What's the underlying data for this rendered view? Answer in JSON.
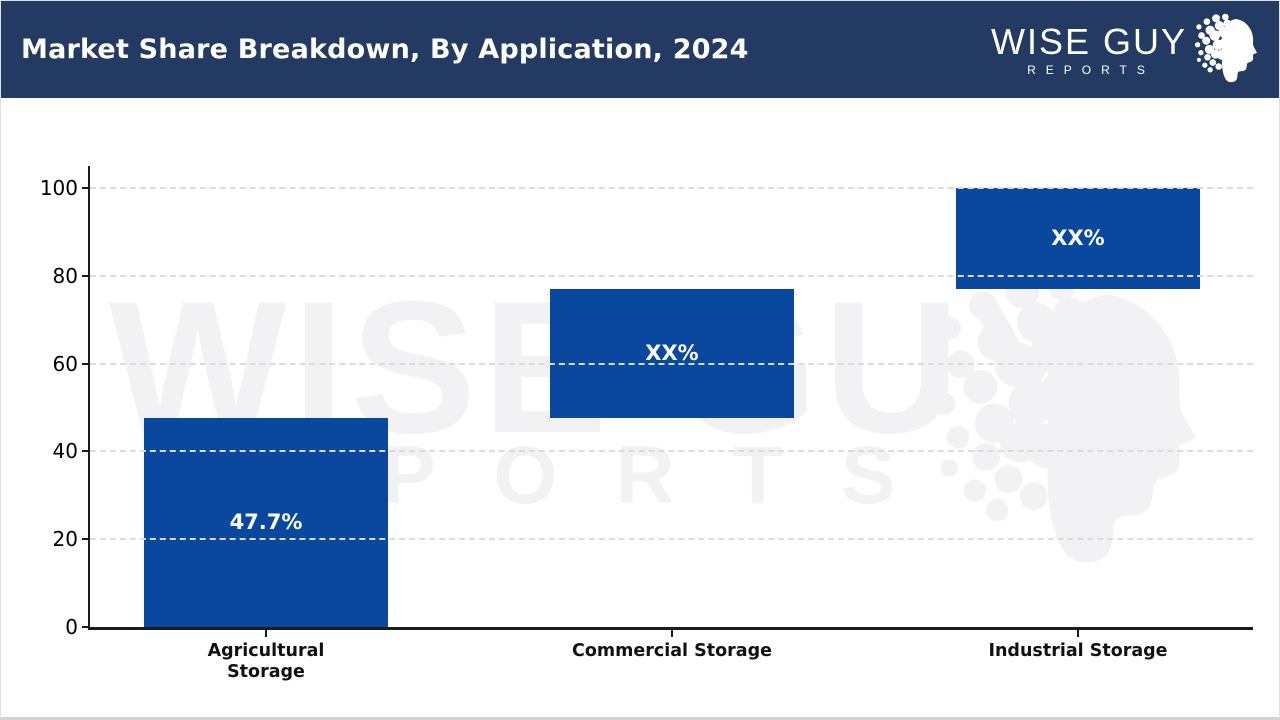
{
  "header": {
    "title": "Market Share Breakdown, By Application, 2024",
    "logo": {
      "name": "WISE GUY",
      "sub": "REPORTS"
    }
  },
  "watermark": {
    "word": "WISE GUY",
    "sub": "REPORTS"
  },
  "colors": {
    "header_bg": "#233A63",
    "bar_blue": "#0A479F",
    "grid": "#dcdcdc",
    "spine": "#1c1c1c",
    "watermark": "#f2f2f4",
    "label_on_bar": "#ffffff"
  },
  "chart_data": {
    "type": "bar",
    "subtype": "floating-segment (waterfall style market-share breakdown)",
    "title": "Market Share Breakdown, By Application, 2024",
    "categories": [
      [
        "Agricultural",
        "Storage"
      ],
      [
        "Commercial Storage"
      ],
      [
        "Industrial Storage"
      ]
    ],
    "segments": [
      {
        "category": "Agricultural Storage",
        "start": 0,
        "end": 47.7,
        "label": "47.7%"
      },
      {
        "category": "Commercial Storage",
        "start": 47.7,
        "end": 77.0,
        "label": "XX%"
      },
      {
        "category": "Industrial Storage",
        "start": 77.0,
        "end": 100,
        "label": "XX%"
      }
    ],
    "xlabel": "",
    "ylabel": "",
    "yticks": [
      0,
      20,
      40,
      60,
      80,
      100
    ],
    "ylim": [
      0,
      105
    ],
    "grid": "horizontal dashed, drawn above bars",
    "legend": "none"
  }
}
